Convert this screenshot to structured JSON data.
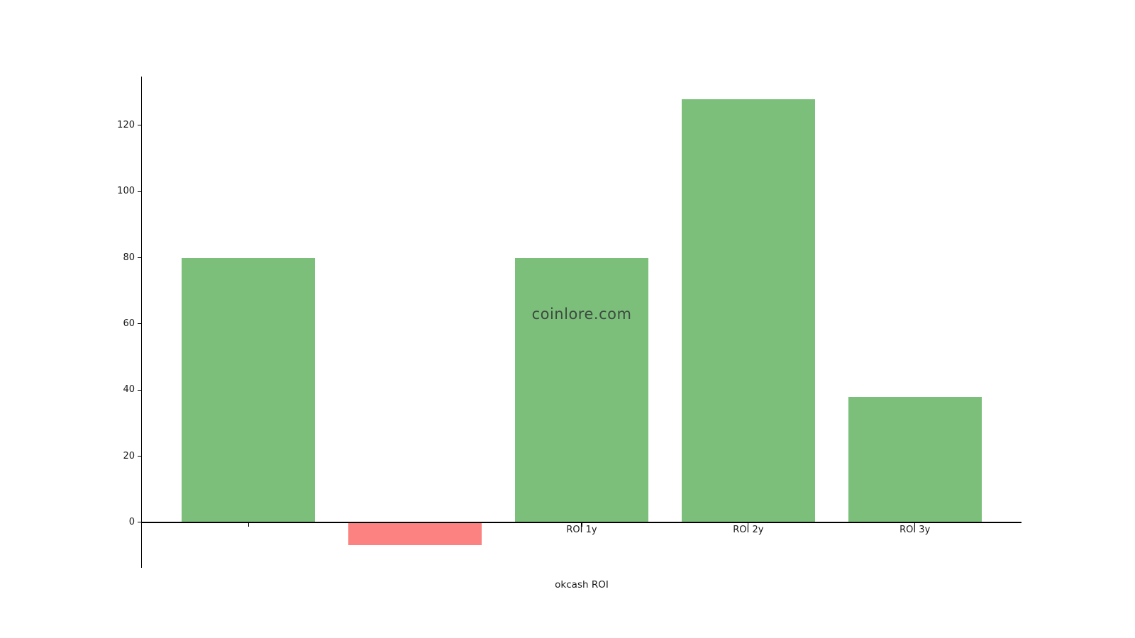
{
  "chart_data": {
    "type": "bar",
    "title": "",
    "xlabel": "okcash ROI",
    "ylabel": "",
    "categories": [
      "",
      "",
      "ROI 1y",
      "ROI 2y",
      "ROI 3y"
    ],
    "values": [
      80,
      -7,
      80,
      128,
      38
    ],
    "bar_colors": [
      "#7cbf7b",
      "#fb8280",
      "#7cbf7b",
      "#7cbf7b",
      "#7cbf7b"
    ],
    "yticks": [
      0,
      20,
      40,
      60,
      80,
      100,
      120
    ],
    "ylim": [
      -13.75,
      134.75
    ],
    "grid": false,
    "legend_position": "none",
    "watermark": "coinlore.com",
    "colors": {
      "positive": "#7cbf7b",
      "negative": "#fb8280",
      "axis": "#000000",
      "tick_label": "#1a1a1a",
      "watermark": "#3d4a40"
    }
  }
}
